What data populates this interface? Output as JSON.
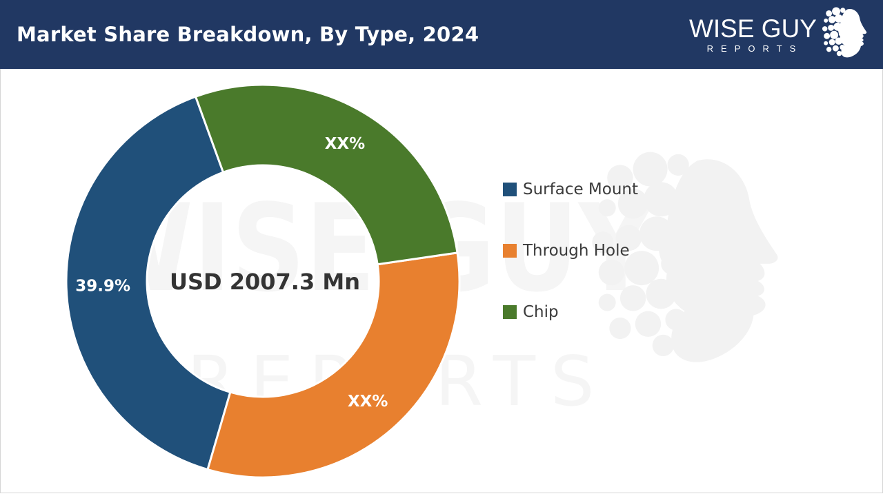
{
  "header": {
    "title": "Market Share Breakdown, By Type, 2024",
    "brand": {
      "line1": "WISE GUY",
      "line2": "REPORTS"
    }
  },
  "chart_data": {
    "type": "pie",
    "subtype": "donut",
    "title": "Market Share Breakdown, By Type, 2024",
    "center_label": "USD 2007.3 Mn",
    "legend_position": "right",
    "segments": [
      {
        "name": "Surface Mount",
        "label": "39.9%",
        "value_pct": 39.9,
        "color": "#20507A",
        "start_deg": 196.3,
        "end_deg": 340.0
      },
      {
        "name": "Through Hole",
        "label": "XX%",
        "value_pct": null,
        "approx_pct": 31.8,
        "color": "#E8802F",
        "start_deg": 81.7,
        "end_deg": 196.3
      },
      {
        "name": "Chip",
        "label": "XX%",
        "value_pct": null,
        "approx_pct": 28.3,
        "color": "#4A7A2B",
        "start_deg": -20.0,
        "end_deg": 81.7
      }
    ]
  },
  "watermark": {
    "line1": "WISE GUY",
    "line2": "REPORTS"
  }
}
